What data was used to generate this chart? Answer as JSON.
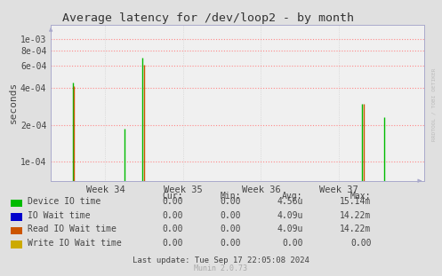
{
  "title": "Average latency for /dev/loop2 - by month",
  "ylabel": "seconds",
  "bg_color": "#e0e0e0",
  "plot_bg_color": "#f0f0f0",
  "grid_color_h": "#ff8888",
  "grid_color_v": "#cccccc",
  "x_ticks": [
    34,
    35,
    36,
    37
  ],
  "x_tick_labels": [
    "Week 34",
    "Week 35",
    "Week 36",
    "Week 37"
  ],
  "x_min": 33.3,
  "x_max": 38.1,
  "y_min": 7e-05,
  "y_max": 0.0013,
  "series": [
    {
      "label": "Device IO time",
      "color": "#00bb00",
      "points": [
        [
          33.58,
          0.00044
        ],
        [
          34.25,
          0.000185
        ],
        [
          34.48,
          0.0007
        ],
        [
          37.3,
          0.000295
        ],
        [
          37.58,
          0.00023
        ]
      ]
    },
    {
      "label": "IO Wait time",
      "color": "#0000cc",
      "points": []
    },
    {
      "label": "Read IO Wait time",
      "color": "#cc5500",
      "points": [
        [
          33.6,
          0.00041
        ],
        [
          34.5,
          0.00062
        ],
        [
          37.32,
          0.000295
        ],
        [
          37.6,
          7e-05
        ]
      ]
    },
    {
      "label": "Write IO Wait time",
      "color": "#ccaa00",
      "points": [
        [
          33.58,
          7e-05
        ],
        [
          34.25,
          7e-05
        ],
        [
          34.48,
          7e-05
        ],
        [
          37.3,
          7e-05
        ],
        [
          37.58,
          7e-05
        ]
      ]
    }
  ],
  "legend_table": {
    "headers": [
      "",
      "Cur:",
      "Min:",
      "Avg:",
      "Max:"
    ],
    "rows": [
      [
        "Device IO time",
        "0.00",
        "0.00",
        "4.56u",
        "15.14m"
      ],
      [
        "IO Wait time",
        "0.00",
        "0.00",
        "4.09u",
        "14.22m"
      ],
      [
        "Read IO Wait time",
        "0.00",
        "0.00",
        "4.09u",
        "14.22m"
      ],
      [
        "Write IO Wait time",
        "0.00",
        "0.00",
        "0.00",
        "0.00"
      ]
    ]
  },
  "last_update": "Last update: Tue Sep 17 22:05:08 2024",
  "munin_version": "Munin 2.0.73",
  "rrdtool_label": "RRDTOOL / TOBI OETIKER"
}
